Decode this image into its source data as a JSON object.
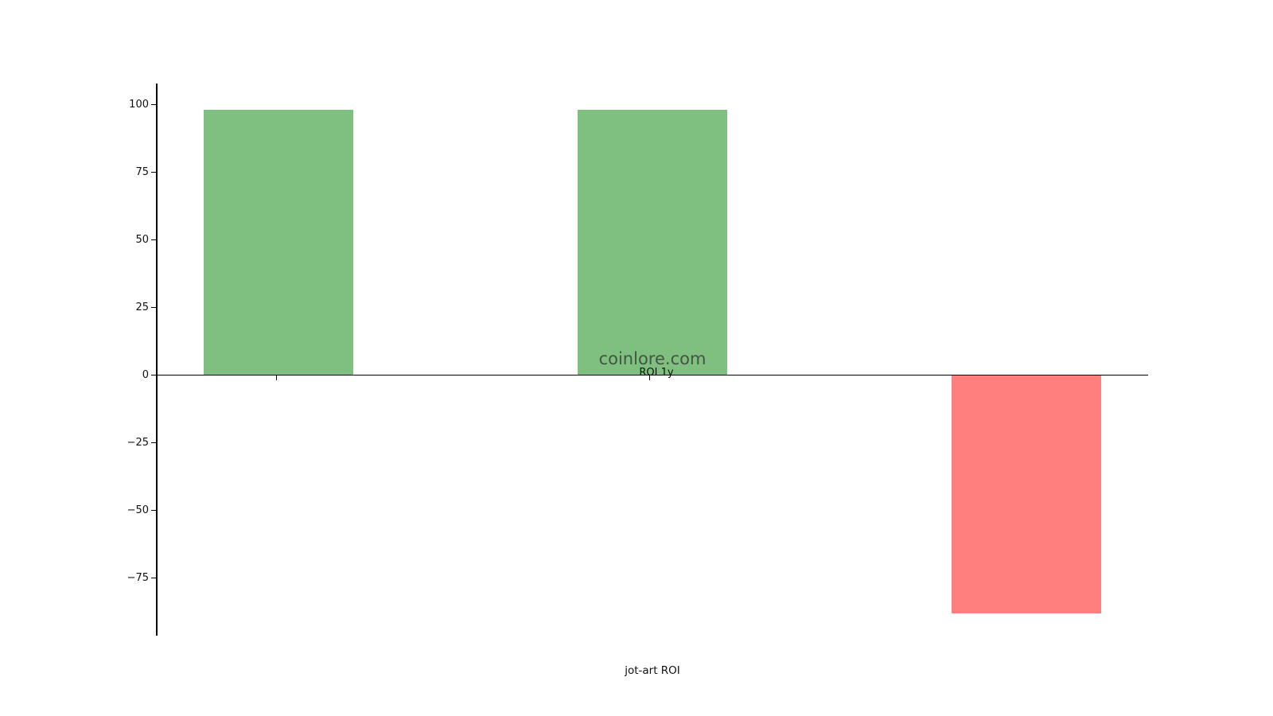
{
  "figure": {
    "watermark": "coinlore.com",
    "bottom_label": "jot-art ROI"
  },
  "chart_data": {
    "type": "bar",
    "title": "",
    "categories": [
      "",
      "ROI 1y",
      ""
    ],
    "values": [
      98,
      98,
      -88
    ],
    "bar_colors": [
      "#7fbf7f",
      "#7fbf7f",
      "#ff7f7f"
    ],
    "positive_color": "#7fbf7f",
    "negative_color": "#ff7f7f",
    "yticks": [
      100,
      75,
      50,
      25,
      0,
      -25,
      -50,
      -75
    ],
    "ytick_labels": [
      "100",
      "75",
      "50",
      "25",
      "0",
      "−25",
      "−50",
      "−75"
    ],
    "xticks": [
      {
        "bar_index": 0,
        "label": ""
      },
      {
        "bar_index": 1,
        "label": "ROI 1y"
      }
    ],
    "xlabel": "jot-art ROI",
    "ylabel": "",
    "ylim": [
      -96,
      108
    ],
    "grid": false,
    "legend": "none",
    "axis_color": "#000000",
    "text_color": "#111111",
    "background": "#ffffff",
    "watermark": "coinlore.com"
  }
}
